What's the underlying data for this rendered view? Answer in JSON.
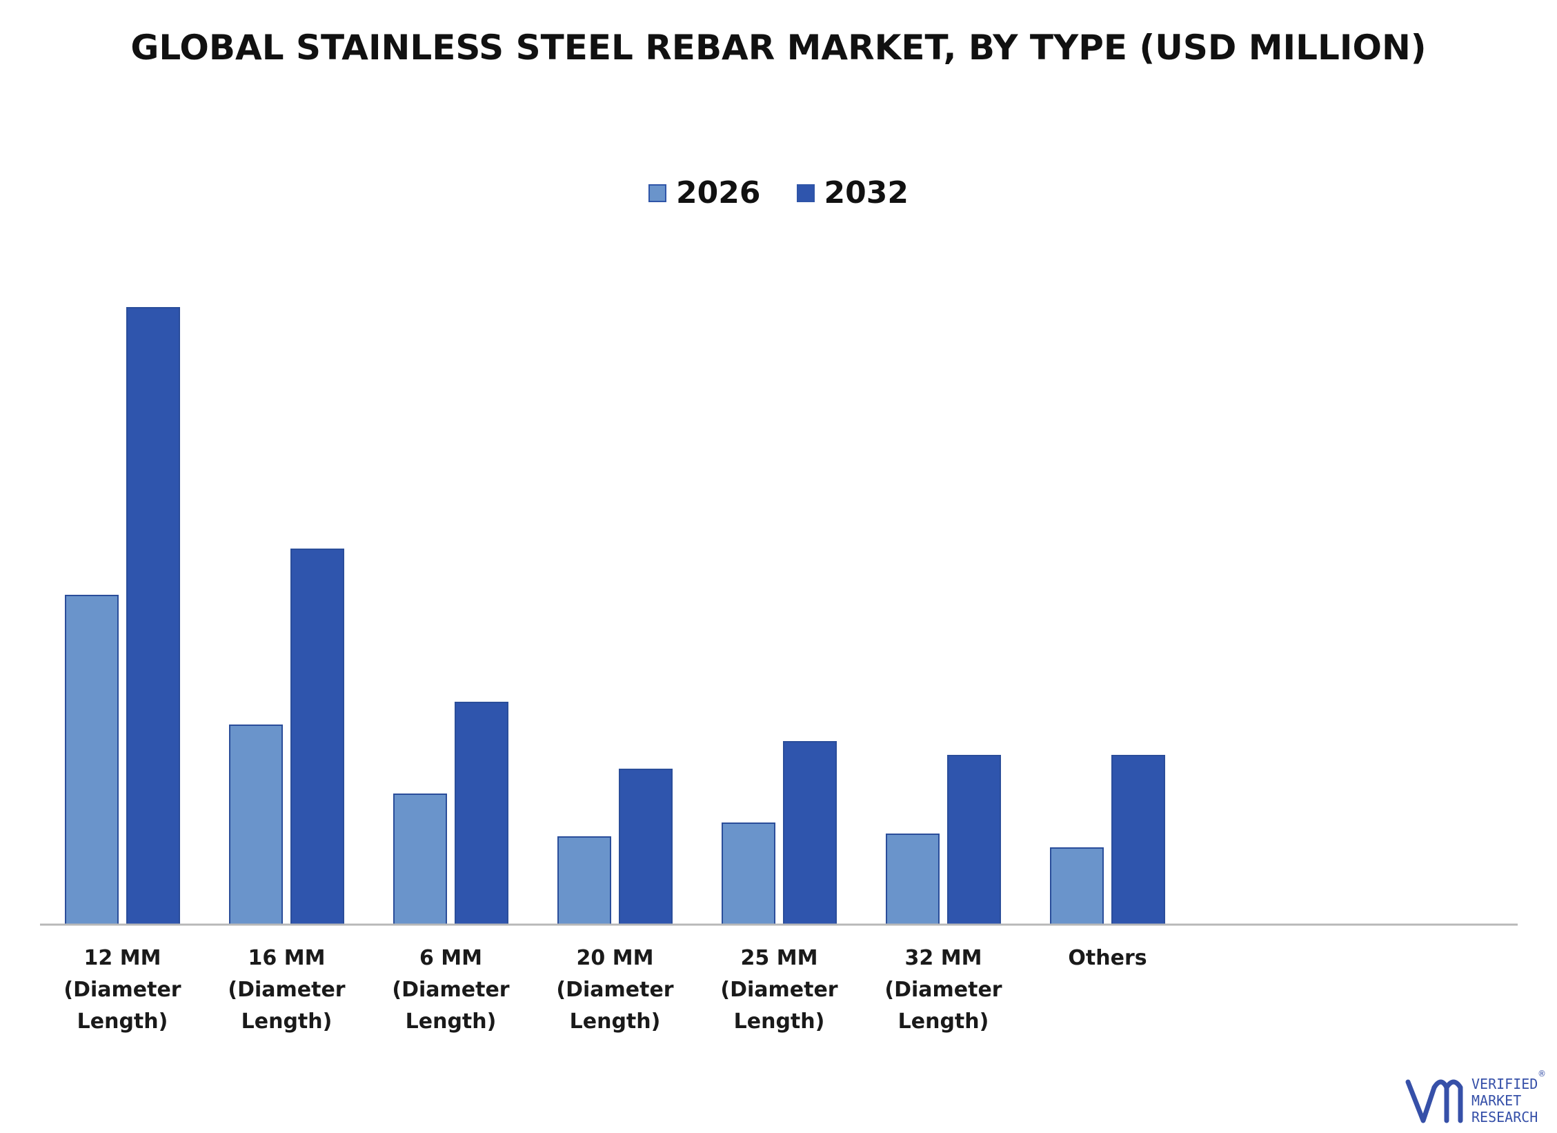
{
  "chart_data": {
    "type": "bar",
    "title": "GLOBAL STAINLESS STEEL REBAR MARKET, BY TYPE (USD MILLION)",
    "xlabel": "",
    "ylabel": "",
    "ylim": [
      0,
      100
    ],
    "grid": false,
    "legend_position": "top-center",
    "categories": [
      [
        "12 MM",
        "(Diameter",
        "Length)"
      ],
      [
        "16 MM",
        "(Diameter",
        "Length)"
      ],
      [
        "6 MM",
        "(Diameter",
        "Length)"
      ],
      [
        "20 MM",
        "(Diameter",
        "Length)"
      ],
      [
        "25 MM",
        "(Diameter",
        "Length)"
      ],
      [
        "32 MM",
        "(Diameter",
        "Length)"
      ],
      [
        "Others"
      ]
    ],
    "series": [
      {
        "name": "2026",
        "color": "#6a94cb",
        "values": [
          47.7,
          28.9,
          18.9,
          12.7,
          14.7,
          13.1,
          11.1
        ]
      },
      {
        "name": "2032",
        "color": "#2f55ad",
        "values": [
          89.4,
          54.4,
          32.2,
          22.5,
          26.5,
          24.5,
          24.5
        ]
      }
    ]
  },
  "brand": {
    "line1": "VERIFIED",
    "line2": "MARKET",
    "line3": "RESEARCH",
    "mark": "®",
    "color": "#3650a8"
  }
}
